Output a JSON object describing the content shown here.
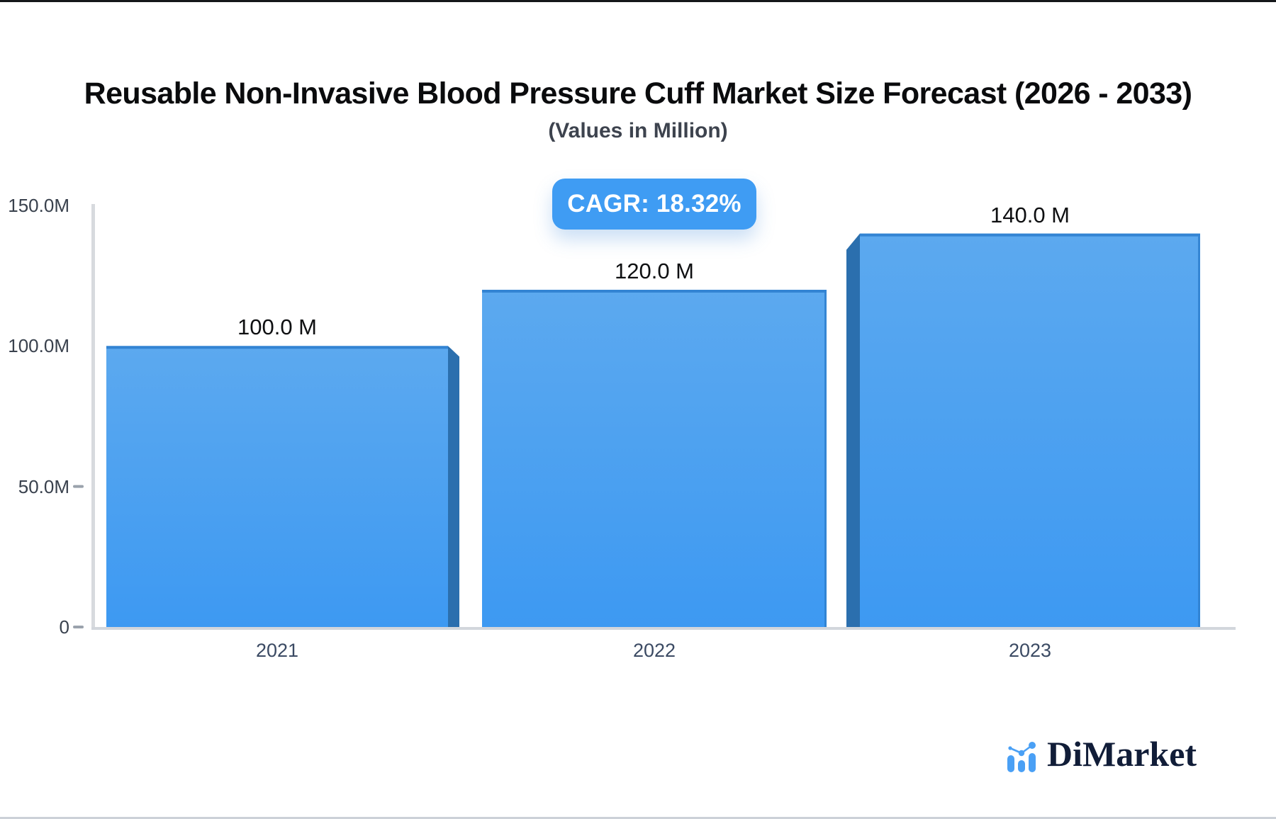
{
  "title": "Reusable Non-Invasive Blood Pressure Cuff Market Size Forecast (2026 - 2033)",
  "subtitle": "(Values in Million)",
  "cagr_badge": "CAGR: 18.32%",
  "logo": {
    "text": "DiMarket",
    "icon": "mini-bar-chart-icon"
  },
  "colors": {
    "badge_bg": "#3f9cf3",
    "bar_gradient_top": "#5ca9ef",
    "bar_gradient_bottom": "#3d99f2",
    "bar_top_stroke": "#2f80cf",
    "bar_side_3d": "#2b6fae",
    "axis_line": "#d7dade",
    "tick_dash": "#9aa2ac",
    "y_label": "#39414d",
    "x_label": "#3b4a63",
    "value_label": "#0e0f11",
    "logo_blue": "#4aa0f5",
    "logo_navy": "#111d38"
  },
  "chart_data": {
    "type": "bar",
    "title": "Reusable Non-Invasive Blood Pressure Cuff Market Size Forecast (2026 - 2033)",
    "subtitle": "(Values in Million)",
    "categories": [
      "2021",
      "2022",
      "2023"
    ],
    "values": [
      100.0,
      120.0,
      140.0
    ],
    "value_labels": [
      "100.0 M",
      "120.0 M",
      "140.0 M"
    ],
    "unit": "Million",
    "xlabel": "",
    "ylabel": "",
    "ylim": [
      0,
      150
    ],
    "yticks": [
      {
        "label": "0",
        "value": 0,
        "dash": true
      },
      {
        "label": "50.0M",
        "value": 50,
        "dash": true
      },
      {
        "label": "100.0M",
        "value": 100,
        "dash": false
      },
      {
        "label": "150.0M",
        "value": 150,
        "dash": false
      }
    ],
    "grid": false,
    "legend": false,
    "annotation": "CAGR: 18.32%"
  }
}
